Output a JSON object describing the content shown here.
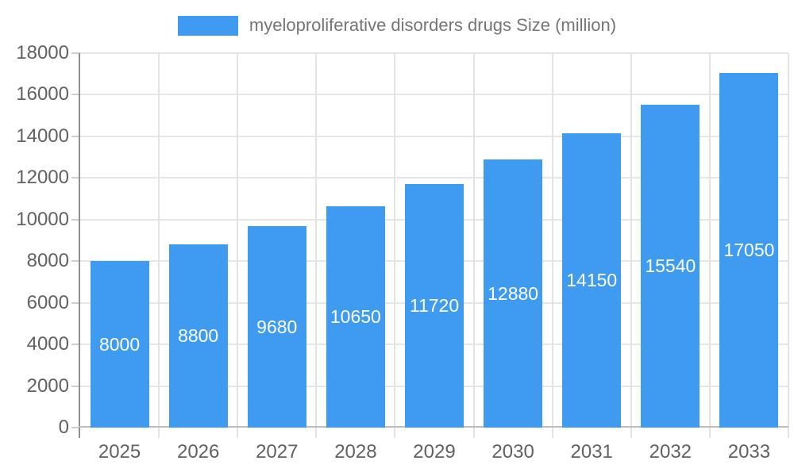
{
  "chart_data": {
    "type": "bar",
    "categories": [
      "2025",
      "2026",
      "2027",
      "2028",
      "2029",
      "2030",
      "2031",
      "2032",
      "2033"
    ],
    "series": [
      {
        "name": "myeloproliferative disorders drugs Size (million)",
        "values": [
          8000,
          8800,
          9680,
          10650,
          11720,
          12880,
          14150,
          15540,
          17050
        ]
      }
    ],
    "value_labels": [
      "8000",
      "8800",
      "9680",
      "10650",
      "11720",
      "12880",
      "14150",
      "15540",
      "17050"
    ],
    "ylim": [
      0,
      18000
    ],
    "ytick_step": 2000,
    "yticks": [
      0,
      2000,
      4000,
      6000,
      8000,
      10000,
      12000,
      14000,
      16000,
      18000
    ],
    "grid": true,
    "legend_position": "top",
    "value_label_position": "inside-center",
    "colors": {
      "bar": "#3E9BF0",
      "bar_label": "#FFFFFF",
      "axis_text": "#616161",
      "legend_text": "#757575",
      "gridline": "#E6E6E6",
      "vertical_gridline": "#E3E3E3",
      "y_axis_line": "#8F8F8F",
      "x_axis_line": "#BDBDBD",
      "tick": "#CFCFCF",
      "background": "#FFFFFF"
    }
  }
}
